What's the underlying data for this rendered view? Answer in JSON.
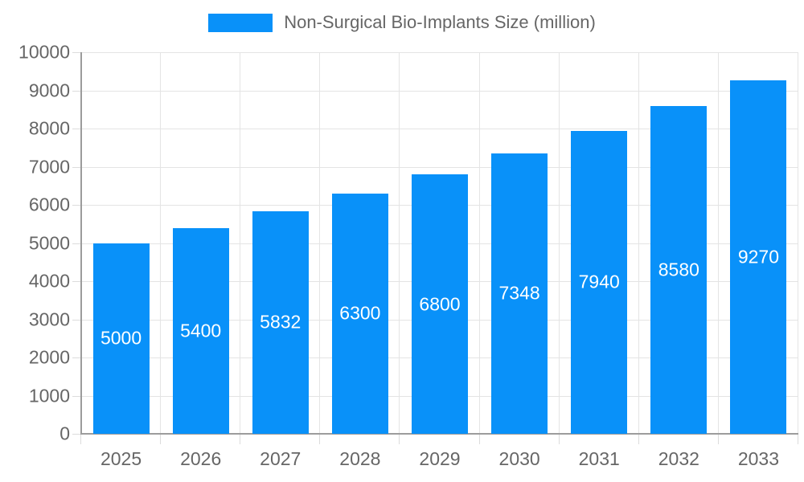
{
  "chart_data": {
    "type": "bar",
    "title": "Non-Surgical Bio-Implants Size (million)",
    "categories": [
      "2025",
      "2026",
      "2027",
      "2028",
      "2029",
      "2030",
      "2031",
      "2032",
      "2033"
    ],
    "series": [
      {
        "name": "Non-Surgical Bio-Implants Size (million)",
        "values": [
          5000,
          5400,
          5832,
          6300,
          6800,
          7348,
          7940,
          8580,
          9270
        ]
      }
    ],
    "xlabel": "",
    "ylabel": "",
    "ylim": [
      0,
      10000
    ],
    "ytick_step": 1000,
    "grid": true,
    "legend_position": "top",
    "value_labels": "inside-center"
  },
  "colors": {
    "bar": "#0991F9",
    "value_label": "#FFFFFF",
    "axis_text": "#666666",
    "legend_text": "#666666",
    "gridline": "#E4E4E4",
    "axis_line": "#9C9C9C",
    "tick": "#DCDCDC",
    "background": "#FFFFFF"
  }
}
